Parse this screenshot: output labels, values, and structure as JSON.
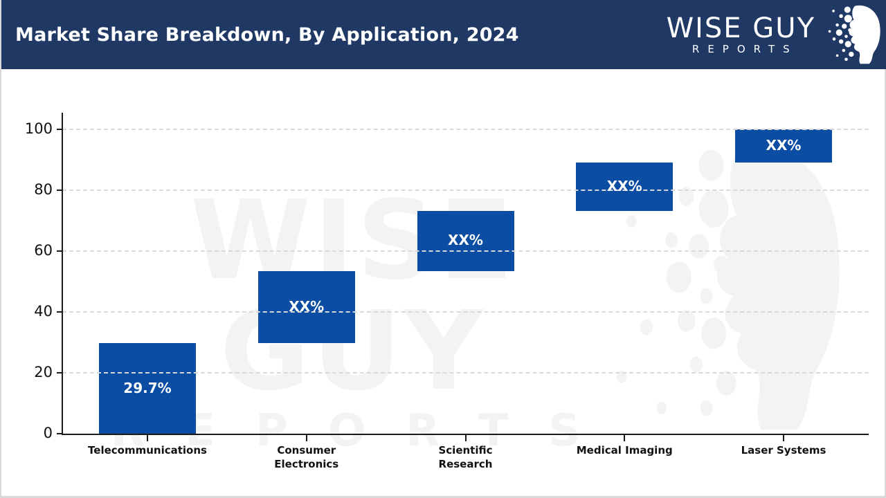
{
  "header": {
    "title": "Market Share Breakdown, By Application, 2024",
    "logo": {
      "line1": "WISE GUY",
      "line2": "REPORTS"
    }
  },
  "watermark": {
    "line1": "WISE GUY",
    "line2": "REPORTS"
  },
  "colors": {
    "header_bg": "#1f3864",
    "bar": "#0b4da2",
    "bar_label": "#ffffff",
    "grid": "#d9d9d9",
    "axis": "#1a1a1a",
    "watermark": "#f3f3f3"
  },
  "chart_data": {
    "type": "bar",
    "subtype": "waterfall",
    "title": "Market Share Breakdown, By Application, 2024",
    "xlabel": "",
    "ylabel": "",
    "ylim": [
      0,
      100
    ],
    "yticks": [
      0,
      20,
      40,
      60,
      80,
      100
    ],
    "grid": "horizontal-dashed",
    "legend": "none",
    "bar_color": "#0b4da2",
    "categories": [
      "Telecommunications",
      "Consumer Electronics",
      "Scientific Research",
      "Medical Imaging",
      "Laser Systems"
    ],
    "category_lines": [
      [
        "Telecommunications"
      ],
      [
        "Consumer",
        "Electronics"
      ],
      [
        "Scientific",
        "Research"
      ],
      [
        "Medical Imaging"
      ],
      [
        "Laser Systems"
      ]
    ],
    "segments": [
      {
        "category": "Telecommunications",
        "start": 0,
        "end": 29.7,
        "label": "29.7%"
      },
      {
        "category": "Consumer Electronics",
        "start": 29.7,
        "end": 53.4,
        "label": "XX%"
      },
      {
        "category": "Scientific Research",
        "start": 53.4,
        "end": 73.2,
        "label": "XX%"
      },
      {
        "category": "Medical Imaging",
        "start": 73.2,
        "end": 89.1,
        "label": "XX%"
      },
      {
        "category": "Laser Systems",
        "start": 89.1,
        "end": 100,
        "label": "XX%"
      }
    ]
  }
}
